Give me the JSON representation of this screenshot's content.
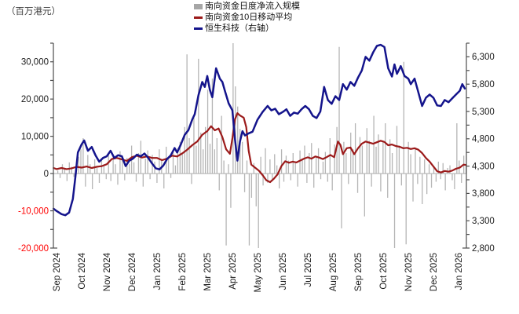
{
  "title": "（百万港元）",
  "legend": [
    {
      "label": "南向资金日度净流入规模",
      "type": "bar",
      "color": "#a6a6a6"
    },
    {
      "label": "南向资金10日移动平均",
      "type": "line",
      "color": "#9b1a1a"
    },
    {
      "label": "恒生科技（右轴）",
      "type": "line",
      "color": "#14148c"
    }
  ],
  "chart_data": {
    "type": "combo(bar+line+line, dual axis)",
    "title": "（百万港元）",
    "x_ticks": [
      "Sep 2024",
      "Oct 2024",
      "Nov 2024",
      "Dec 2024",
      "Jan 2025",
      "Feb 2025",
      "Mar 2025",
      "Apr 2025",
      "May 2025",
      "Jun 2025",
      "Jul 2025",
      "Aug 2025",
      "Sep 2025",
      "Oct 2025",
      "Nov 2025",
      "Dec 2025",
      "Jan 2026"
    ],
    "left_axis": {
      "unit": "百万港元",
      "min": -20000,
      "max": 35000,
      "minor_tick_step": 5000,
      "labels": [
        {
          "v": 30000,
          "t": "30,000",
          "color": "#1a1a1a"
        },
        {
          "v": 20000,
          "t": "20,000",
          "color": "#1a1a1a"
        },
        {
          "v": 10000,
          "t": "10,000",
          "color": "#1a1a1a"
        },
        {
          "v": 0,
          "t": "0",
          "color": "#1a1a1a"
        },
        {
          "v": -10000,
          "t": "-10,000",
          "color": "#ff0000"
        },
        {
          "v": -20000,
          "t": "-20,000",
          "color": "#ff0000"
        }
      ]
    },
    "right_axis": {
      "min": 2800,
      "max": 6550,
      "minor_tick_step": 250,
      "labels": [
        {
          "v": 6300,
          "t": "6,300"
        },
        {
          "v": 5800,
          "t": "5,800"
        },
        {
          "v": 5300,
          "t": "5,300"
        },
        {
          "v": 4800,
          "t": "4,800"
        },
        {
          "v": 4300,
          "t": "4,300"
        },
        {
          "v": 3800,
          "t": "3,800"
        },
        {
          "v": 3300,
          "t": "3,300"
        },
        {
          "v": 2800,
          "t": "2,800"
        }
      ]
    },
    "bars": {
      "name": "南向资金日度净流入规模",
      "axis": "left",
      "color": "#b5b5b5",
      "values": [
        800,
        -1200,
        2500,
        1500,
        -2000,
        3000,
        1800,
        -900,
        2200,
        4500,
        6500,
        9500,
        -3500,
        5000,
        2500,
        -4200,
        3800,
        1500,
        -2500,
        4200,
        2000,
        -1500,
        5500,
        -2000,
        4800,
        2500,
        -3000,
        6000,
        3500,
        -1800,
        4200,
        2600,
        7500,
        3000,
        -2200,
        5500,
        8800,
        -3500,
        4000,
        6200,
        -1500,
        5000,
        3200,
        -2500,
        6500,
        3800,
        -4000,
        7200,
        4500,
        -1200,
        5800,
        2200,
        6800,
        8500,
        5200,
        12500,
        32000,
        9500,
        -2800,
        15000,
        7500,
        30800,
        11000,
        6500,
        12500,
        22500,
        8000,
        25500,
        6500,
        9500,
        -4500,
        15500,
        3500,
        -19300,
        2500,
        -9200,
        35000,
        23400,
        18000,
        12000,
        8500,
        -5000,
        3500,
        -19300,
        -6500,
        2800,
        -8800,
        -20000,
        4500,
        -3200,
        6800,
        -2500,
        3800,
        -1500,
        5200,
        2200,
        -4000,
        6500,
        -2200,
        4800,
        3500,
        -1800,
        5500,
        2800,
        -3500,
        6200,
        4000,
        7500,
        -2500,
        5500,
        8200,
        -3800,
        4500,
        6800,
        -1500,
        3200,
        5800,
        -2200,
        9500,
        -4500,
        7800,
        12500,
        34000,
        -14700,
        8500,
        5500,
        -2800,
        11000,
        6500,
        13500,
        -5200,
        9800,
        7500,
        -11500,
        12200,
        8800,
        -3500,
        15500,
        7200,
        10500,
        -4800,
        8800,
        13500,
        -6500,
        9200,
        5500,
        -20000,
        12800,
        7500,
        -3200,
        30000,
        -19000,
        8500,
        5200,
        -7500,
        6800,
        -2800,
        4500,
        -8200,
        3800,
        -5500,
        2500,
        -3800,
        1800,
        -2200,
        3200,
        -1500,
        2800,
        -4500,
        1500,
        2200,
        -1800,
        -4200,
        13500,
        3500,
        -2500,
        4800,
        2600
      ]
    },
    "series": [
      {
        "name": "南向资金10日移动平均",
        "axis": "left",
        "color": "#9b1a1a",
        "width": 2.2,
        "points": [
          [
            -0.12,
            1500
          ],
          [
            0,
            1200
          ],
          [
            0.2,
            1500
          ],
          [
            0.4,
            1200
          ],
          [
            0.6,
            1400
          ],
          [
            0.8,
            1800
          ],
          [
            1.0,
            1600
          ],
          [
            1.2,
            1900
          ],
          [
            1.4,
            1500
          ],
          [
            1.6,
            1800
          ],
          [
            1.8,
            2000
          ],
          [
            2.0,
            2500
          ],
          [
            2.2,
            3900
          ],
          [
            2.4,
            4200
          ],
          [
            2.6,
            3800
          ],
          [
            2.8,
            3400
          ],
          [
            3.0,
            4400
          ],
          [
            3.2,
            4800
          ],
          [
            3.4,
            4300
          ],
          [
            3.6,
            4600
          ],
          [
            3.8,
            4200
          ],
          [
            4.0,
            4200
          ],
          [
            4.2,
            3600
          ],
          [
            4.4,
            4000
          ],
          [
            4.6,
            4800
          ],
          [
            4.8,
            4600
          ],
          [
            5.0,
            5400
          ],
          [
            5.2,
            6400
          ],
          [
            5.4,
            7600
          ],
          [
            5.6,
            8600
          ],
          [
            5.8,
            10400
          ],
          [
            6.0,
            11400
          ],
          [
            6.15,
            12700
          ],
          [
            6.3,
            11600
          ],
          [
            6.45,
            12100
          ],
          [
            6.6,
            9800
          ],
          [
            6.75,
            6500
          ],
          [
            6.9,
            5300
          ],
          [
            7.0,
            9500
          ],
          [
            7.1,
            14500
          ],
          [
            7.2,
            16200
          ],
          [
            7.3,
            15600
          ],
          [
            7.45,
            15000
          ],
          [
            7.55,
            12500
          ],
          [
            7.65,
            6000
          ],
          [
            7.75,
            2400
          ],
          [
            7.9,
            1600
          ],
          [
            8.05,
            800
          ],
          [
            8.2,
            -400
          ],
          [
            8.35,
            -1800
          ],
          [
            8.5,
            -2300
          ],
          [
            8.65,
            -1400
          ],
          [
            8.8,
            -200
          ],
          [
            8.95,
            2000
          ],
          [
            9.1,
            3300
          ],
          [
            9.25,
            2900
          ],
          [
            9.4,
            3200
          ],
          [
            9.55,
            3000
          ],
          [
            9.7,
            3500
          ],
          [
            9.85,
            4000
          ],
          [
            10.0,
            4350
          ],
          [
            10.15,
            4000
          ],
          [
            10.3,
            4600
          ],
          [
            10.45,
            4300
          ],
          [
            10.6,
            3900
          ],
          [
            10.75,
            4400
          ],
          [
            10.9,
            5000
          ],
          [
            11.05,
            4400
          ],
          [
            11.2,
            8600
          ],
          [
            11.3,
            7700
          ],
          [
            11.4,
            5200
          ],
          [
            11.55,
            6800
          ],
          [
            11.7,
            7000
          ],
          [
            11.85,
            5200
          ],
          [
            12.0,
            6800
          ],
          [
            12.15,
            8000
          ],
          [
            12.3,
            8600
          ],
          [
            12.45,
            8300
          ],
          [
            12.6,
            8000
          ],
          [
            12.75,
            8400
          ],
          [
            12.9,
            8800
          ],
          [
            13.05,
            8500
          ],
          [
            13.2,
            7600
          ],
          [
            13.35,
            7800
          ],
          [
            13.5,
            7400
          ],
          [
            13.65,
            7200
          ],
          [
            13.8,
            6800
          ],
          [
            13.95,
            6900
          ],
          [
            14.1,
            6600
          ],
          [
            14.25,
            6800
          ],
          [
            14.4,
            6400
          ],
          [
            14.55,
            5500
          ],
          [
            14.7,
            4200
          ],
          [
            14.85,
            3200
          ],
          [
            15.0,
            1900
          ],
          [
            15.15,
            600
          ],
          [
            15.3,
            300
          ],
          [
            15.45,
            700
          ],
          [
            15.6,
            500
          ],
          [
            15.75,
            800
          ],
          [
            15.9,
            1300
          ],
          [
            16.05,
            1600
          ],
          [
            16.2,
            2400
          ],
          [
            16.3,
            2300
          ]
        ]
      },
      {
        "name": "恒生科技（右轴）",
        "axis": "right",
        "color": "#14148c",
        "width": 2.5,
        "points": [
          [
            -0.12,
            3520
          ],
          [
            0,
            3480
          ],
          [
            0.2,
            3420
          ],
          [
            0.35,
            3400
          ],
          [
            0.5,
            3450
          ],
          [
            0.65,
            3700
          ],
          [
            0.75,
            4100
          ],
          [
            0.85,
            4550
          ],
          [
            1.0,
            4700
          ],
          [
            1.1,
            4770
          ],
          [
            1.25,
            4580
          ],
          [
            1.4,
            4650
          ],
          [
            1.55,
            4500
          ],
          [
            1.7,
            4380
          ],
          [
            1.85,
            4450
          ],
          [
            2.0,
            4480
          ],
          [
            2.15,
            4580
          ],
          [
            2.3,
            4450
          ],
          [
            2.45,
            4500
          ],
          [
            2.6,
            4480
          ],
          [
            2.75,
            4300
          ],
          [
            2.9,
            4400
          ],
          [
            3.05,
            4440
          ],
          [
            3.2,
            4510
          ],
          [
            3.35,
            4480
          ],
          [
            3.5,
            4530
          ],
          [
            3.65,
            4450
          ],
          [
            3.8,
            4350
          ],
          [
            3.95,
            4260
          ],
          [
            4.1,
            4240
          ],
          [
            4.25,
            4310
          ],
          [
            4.4,
            4430
          ],
          [
            4.55,
            4500
          ],
          [
            4.7,
            4630
          ],
          [
            4.8,
            4550
          ],
          [
            4.95,
            4700
          ],
          [
            5.1,
            4870
          ],
          [
            5.25,
            4960
          ],
          [
            5.4,
            5150
          ],
          [
            5.5,
            5250
          ],
          [
            5.65,
            5600
          ],
          [
            5.8,
            5840
          ],
          [
            5.9,
            5750
          ],
          [
            6.0,
            5950
          ],
          [
            6.1,
            5700
          ],
          [
            6.2,
            5560
          ],
          [
            6.35,
            6090
          ],
          [
            6.5,
            5900
          ],
          [
            6.6,
            5840
          ],
          [
            6.7,
            5680
          ],
          [
            6.85,
            5450
          ],
          [
            7.0,
            5320
          ],
          [
            7.1,
            4800
          ],
          [
            7.2,
            4400
          ],
          [
            7.3,
            4750
          ],
          [
            7.4,
            4940
          ],
          [
            7.5,
            4860
          ],
          [
            7.65,
            4900
          ],
          [
            7.8,
            4930
          ],
          [
            8.0,
            5150
          ],
          [
            8.2,
            5290
          ],
          [
            8.4,
            5400
          ],
          [
            8.55,
            5320
          ],
          [
            8.7,
            5350
          ],
          [
            8.85,
            5250
          ],
          [
            9.0,
            5290
          ],
          [
            9.15,
            5340
          ],
          [
            9.3,
            5220
          ],
          [
            9.45,
            5280
          ],
          [
            9.6,
            5260
          ],
          [
            9.75,
            5340
          ],
          [
            9.9,
            5400
          ],
          [
            10.05,
            5340
          ],
          [
            10.2,
            5220
          ],
          [
            10.35,
            5180
          ],
          [
            10.5,
            5300
          ],
          [
            10.65,
            5750
          ],
          [
            10.8,
            5510
          ],
          [
            10.95,
            5440
          ],
          [
            11.1,
            5580
          ],
          [
            11.25,
            5510
          ],
          [
            11.4,
            5800
          ],
          [
            11.55,
            5700
          ],
          [
            11.7,
            5840
          ],
          [
            11.85,
            5770
          ],
          [
            12.0,
            5920
          ],
          [
            12.15,
            6050
          ],
          [
            12.3,
            6300
          ],
          [
            12.45,
            6230
          ],
          [
            12.6,
            6380
          ],
          [
            12.75,
            6500
          ],
          [
            12.9,
            6520
          ],
          [
            13.05,
            6480
          ],
          [
            13.2,
            6090
          ],
          [
            13.35,
            5940
          ],
          [
            13.45,
            6160
          ],
          [
            13.55,
            5990
          ],
          [
            13.7,
            6130
          ],
          [
            13.85,
            5950
          ],
          [
            14.0,
            5900
          ],
          [
            14.1,
            5800
          ],
          [
            14.25,
            5900
          ],
          [
            14.4,
            5650
          ],
          [
            14.55,
            5400
          ],
          [
            14.7,
            5550
          ],
          [
            14.85,
            5610
          ],
          [
            15.0,
            5550
          ],
          [
            15.15,
            5410
          ],
          [
            15.3,
            5400
          ],
          [
            15.45,
            5510
          ],
          [
            15.6,
            5470
          ],
          [
            15.75,
            5540
          ],
          [
            15.9,
            5610
          ],
          [
            16.05,
            5680
          ],
          [
            16.15,
            5800
          ],
          [
            16.25,
            5720
          ]
        ]
      }
    ],
    "layout_hints": {
      "grid": "zero-line only",
      "legend_position": "top-center",
      "x_label_rotation": -90
    }
  }
}
